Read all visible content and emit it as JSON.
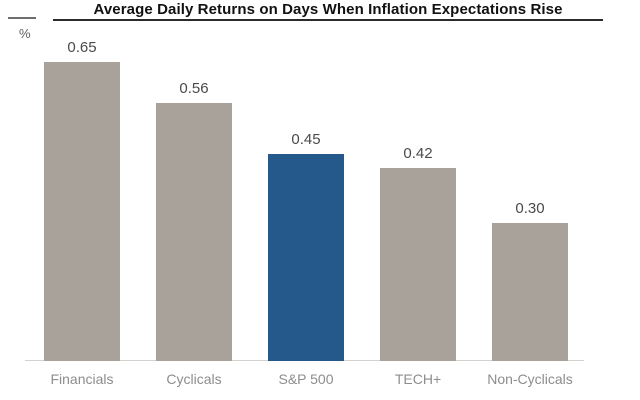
{
  "header": {
    "title": "Average Daily Returns on Days When Inflation Expectations Rise",
    "unit_label": "%"
  },
  "chart_data": {
    "type": "bar",
    "title": "Average Daily Returns on Days When Inflation Expectations Rise",
    "xlabel": "",
    "ylabel": "%",
    "categories": [
      "Financials",
      "Cyclicals",
      "S&P 500",
      "TECH+",
      "Non-Cyclicals"
    ],
    "values": [
      0.65,
      0.56,
      0.45,
      0.42,
      0.3
    ],
    "value_labels": [
      "0.65",
      "0.56",
      "0.45",
      "0.42",
      "0.30"
    ],
    "ylim": [
      0,
      0.7
    ],
    "grid": false,
    "legend": "none",
    "y_axis_visible": false,
    "highlight_category": "S&P 500",
    "colors": {
      "default_bar": "#a9a29b",
      "highlight_bar": "#25598b",
      "title_text": "#111111",
      "title_rule": "#2b2b2b",
      "value_label_text": "#4a4a4a",
      "category_label_text": "#8d8d8d",
      "baseline": "#d4d1ce"
    }
  }
}
